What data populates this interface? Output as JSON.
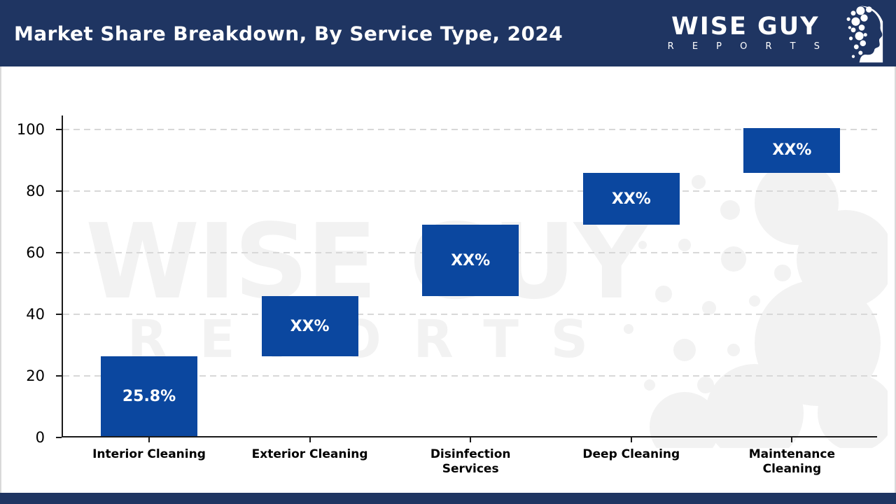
{
  "colors": {
    "header_bg": "#1f3562",
    "footer_bg": "#1f3562",
    "bar": "#0b479f",
    "grid": "#d8d8d8",
    "axis": "#1a1a1a",
    "watermark": "#f2f2f2",
    "title_text": "#ffffff",
    "bar_label_text": "#ffffff"
  },
  "header": {
    "title": "Market Share Breakdown, By Service Type, 2024",
    "logo_line1": "WISE GUY",
    "logo_line2": "R E P O R T S"
  },
  "watermark": {
    "line1": "WISE GUY",
    "line2": "REPORTS"
  },
  "chart_data": {
    "type": "bar",
    "subtype": "waterfall",
    "title": "Market Share Breakdown, By Service Type, 2024",
    "xlabel": "",
    "ylabel": "",
    "ylim": [
      0,
      104.5
    ],
    "yticks": [
      0,
      20,
      40,
      60,
      80,
      100
    ],
    "grid": "horizontal dashed",
    "legend": "none",
    "categories": [
      "Interior Cleaning",
      "Exterior Cleaning",
      "Disinfection Services",
      "Deep Cleaning",
      "Maintenance Cleaning"
    ],
    "category_lines": [
      [
        "Interior Cleaning"
      ],
      [
        "Exterior Cleaning"
      ],
      [
        "Disinfection",
        "Services"
      ],
      [
        "Deep Cleaning"
      ],
      [
        "Maintenance",
        "Cleaning"
      ]
    ],
    "bars": [
      {
        "category": "Interior Cleaning",
        "start": 0,
        "end": 25.8,
        "label": "25.8%"
      },
      {
        "category": "Exterior Cleaning",
        "start": 25.8,
        "end": 45.5,
        "label": "XX%"
      },
      {
        "category": "Disinfection Services",
        "start": 45.5,
        "end": 68.5,
        "label": "XX%"
      },
      {
        "category": "Deep Cleaning",
        "start": 68.5,
        "end": 85.5,
        "label": "XX%"
      },
      {
        "category": "Maintenance Cleaning",
        "start": 85.5,
        "end": 100,
        "label": "XX%"
      }
    ]
  }
}
